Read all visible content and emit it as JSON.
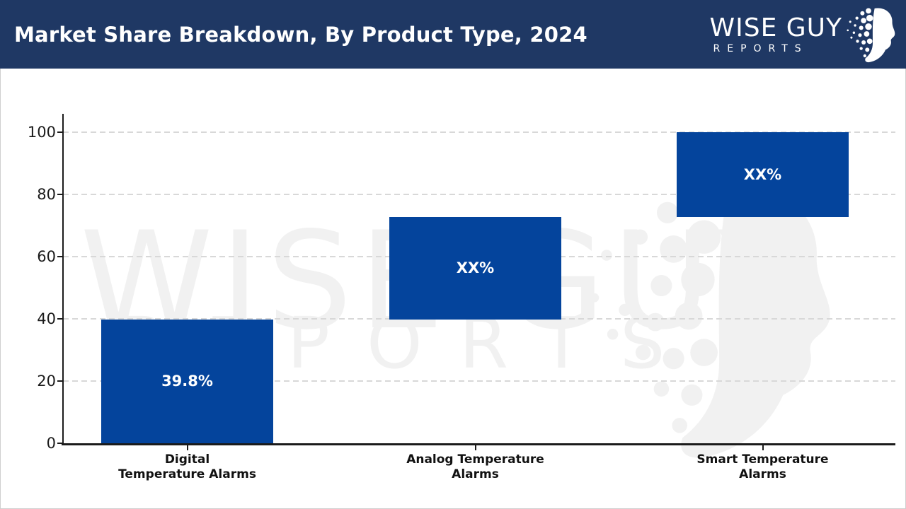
{
  "header": {
    "title": "Market Share Breakdown, By Product Type, 2024",
    "logo": {
      "line1": "WISE GUY",
      "line2": "REPORTS"
    }
  },
  "watermark": {
    "line1": "WISE GUY",
    "line2": "REPORTS"
  },
  "chart_data": {
    "type": "bar",
    "subtype": "waterfall-floating-bars",
    "title": "Market Share Breakdown, By Product Type, 2024",
    "categories": [
      "Digital\nTemperature Alarms",
      "Analog Temperature\nAlarms",
      "Smart Temperature\nAlarms"
    ],
    "series": [
      {
        "name": "Market Share (%)",
        "segments": [
          {
            "category": "Digital\nTemperature Alarms",
            "start": 0,
            "end": 39.8,
            "label": "39.8%"
          },
          {
            "category": "Analog Temperature\nAlarms",
            "start": 39.8,
            "end": 72.8,
            "label": "XX%"
          },
          {
            "category": "Smart Temperature\nAlarms",
            "start": 72.8,
            "end": 100,
            "label": "XX%"
          }
        ]
      }
    ],
    "yticks": [
      0,
      20,
      40,
      60,
      80,
      100
    ],
    "ylim": [
      0,
      106
    ],
    "xlabel": "",
    "ylabel": "",
    "grid": "horizontal-dashed",
    "legend": "none",
    "bar_color": "#04449c",
    "bar_label_color": "#ffffff",
    "grid_color": "#d8d8d8",
    "axis_color": "#1b1b1b",
    "header_color": "#1f3864",
    "watermark_color": "#f1f1f1"
  }
}
